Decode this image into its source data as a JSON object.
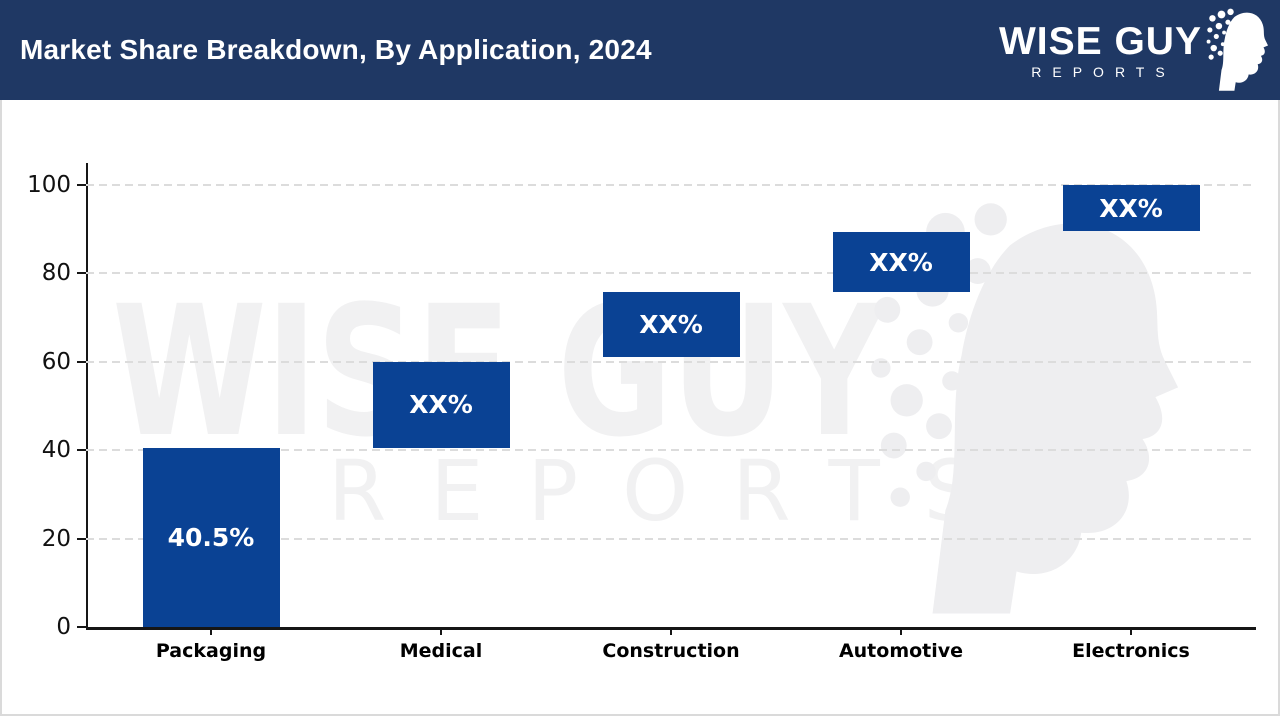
{
  "header": {
    "title": "Market Share Breakdown, By Application, 2024",
    "bg_color": "#1f3864",
    "logo": {
      "line1": "WISE GUY",
      "line2": "REPORTS"
    }
  },
  "watermark": {
    "line1": "WISE GUY",
    "line2": "REPORTS"
  },
  "chart_data": {
    "type": "bar",
    "subtype": "floating-waterfall",
    "title": "Market Share Breakdown, By Application, 2024",
    "categories": [
      "Packaging",
      "Medical",
      "Construction",
      "Automotive",
      "Electronics"
    ],
    "bars": [
      {
        "category": "Packaging",
        "start": 0,
        "end": 40.5,
        "label": "40.5%"
      },
      {
        "category": "Medical",
        "start": 40.5,
        "end": 60,
        "label": "XX%"
      },
      {
        "category": "Construction",
        "start": 61,
        "end": 75.8,
        "label": "XX%"
      },
      {
        "category": "Automotive",
        "start": 75.8,
        "end": 89.3,
        "label": "XX%"
      },
      {
        "category": "Electronics",
        "start": 89.5,
        "end": 100,
        "label": "XX%"
      }
    ],
    "xlabel": "",
    "ylabel": "",
    "ylim": [
      0,
      100
    ],
    "yticks": [
      0,
      20,
      40,
      60,
      80,
      100
    ],
    "grid": "horizontal-dashed",
    "legend": "none",
    "bar_color": "#0a4294",
    "bar_label_color": "#ffffff",
    "grid_color": "#dcdcdc",
    "axis_color": "#161616"
  }
}
